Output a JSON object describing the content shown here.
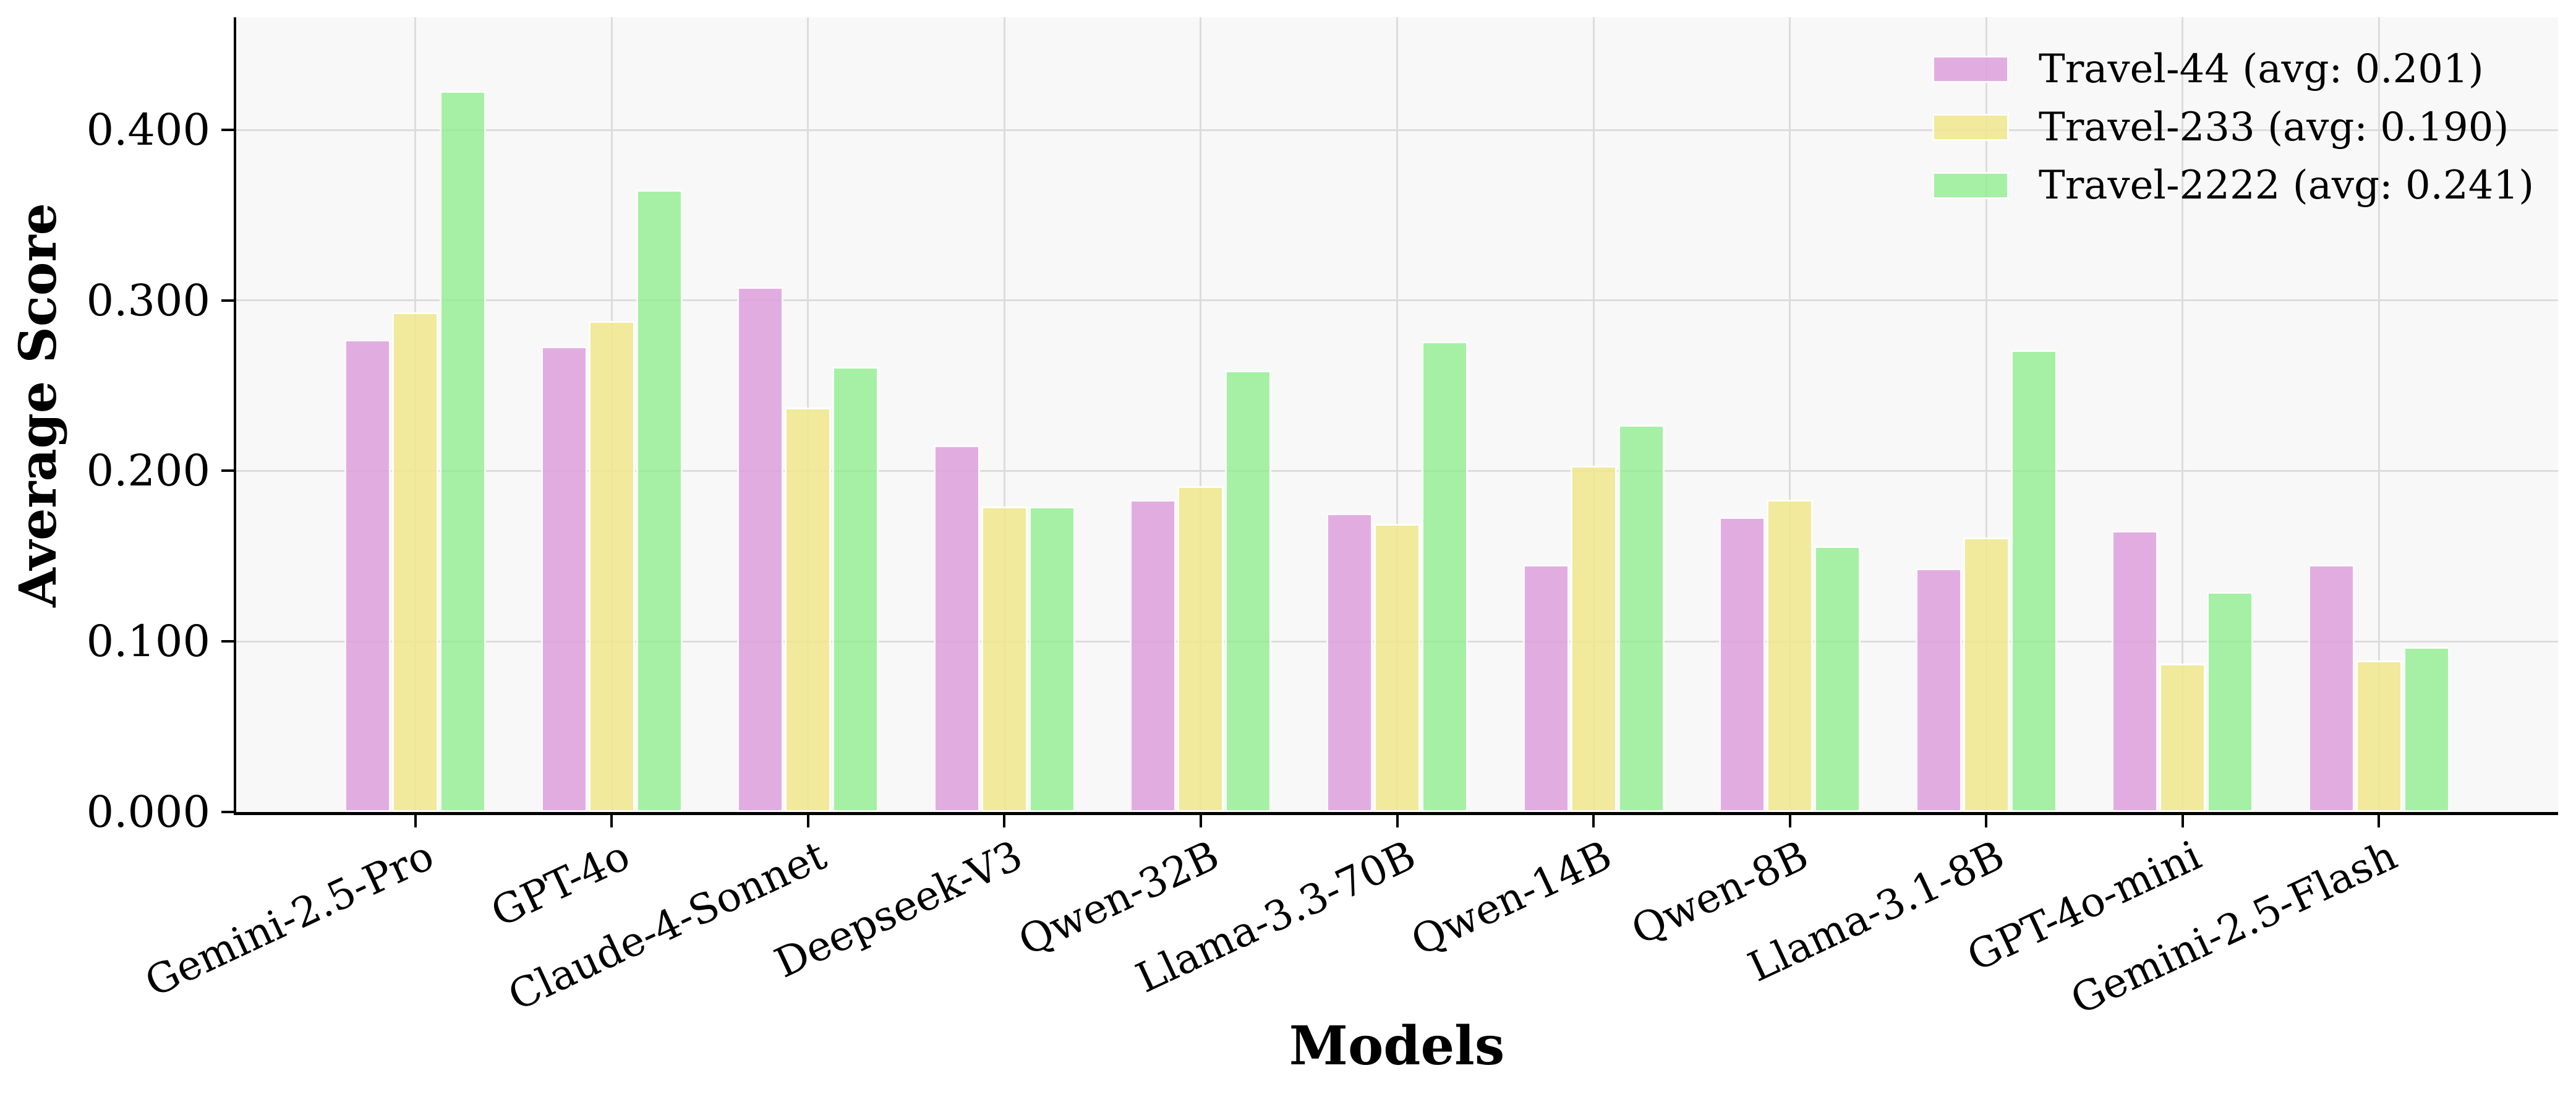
{
  "figure": {
    "background": "#ffffff",
    "plot_background": "#f8f8f8",
    "grid_color": "#dcdcdc",
    "axis_color": "#000000",
    "bar_edge_color": "#ffffff"
  },
  "chart_data": {
    "type": "bar",
    "title": "",
    "xlabel": "Models",
    "ylabel": "Average Score",
    "categories": [
      "Gemini-2.5-Pro",
      "GPT-4o",
      "Claude-4-Sonnet",
      "Deepseek-V3",
      "Qwen-32B",
      "Llama-3.3-70B",
      "Qwen-14B",
      "Qwen-8B",
      "Llama-3.1-8B",
      "GPT-4o-mini",
      "Gemini-2.5-Flash"
    ],
    "series": [
      {
        "name": "Travel-44",
        "legend_label": "Travel-44 (avg: 0.201)",
        "avg": 0.201,
        "color": "rgba(221,160,221,0.85)",
        "values": [
          0.277,
          0.273,
          0.308,
          0.215,
          0.183,
          0.175,
          0.145,
          0.173,
          0.143,
          0.165,
          0.145
        ]
      },
      {
        "name": "Travel-233",
        "legend_label": "Travel-233 (avg: 0.190)",
        "avg": 0.19,
        "color": "rgba(240,230,140,0.85)",
        "values": [
          0.293,
          0.288,
          0.237,
          0.179,
          0.191,
          0.169,
          0.203,
          0.183,
          0.161,
          0.087,
          0.089
        ]
      },
      {
        "name": "Travel-2222",
        "legend_label": "Travel-2222 (avg: 0.241)",
        "avg": 0.241,
        "color": "rgba(144,238,144,0.80)",
        "values": [
          0.423,
          0.365,
          0.261,
          0.179,
          0.259,
          0.276,
          0.227,
          0.156,
          0.271,
          0.129,
          0.097
        ]
      }
    ],
    "ylim": [
      0,
      0.466
    ],
    "yticks": [
      0,
      0.1,
      0.2,
      0.3,
      0.4
    ],
    "ytick_labels": [
      "0.000",
      "0.100",
      "0.200",
      "0.300",
      "0.400"
    ],
    "grid": true,
    "legend_position": "upper right",
    "tick_rotation_deg": 25
  }
}
